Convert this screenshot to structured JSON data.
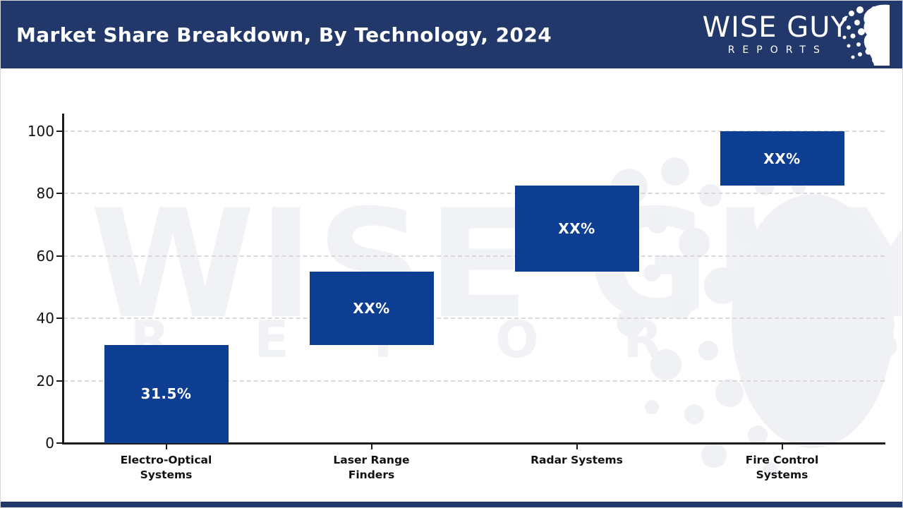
{
  "header": {
    "title": "Market Share Breakdown, By Technology, 2024",
    "brand": {
      "name": "WISE GUY",
      "tagline": "REPORTS"
    }
  },
  "watermark": {
    "line1": "WISE GUY",
    "line2": "REPORTS"
  },
  "chart_data": {
    "type": "bar",
    "subtype": "floating-waterfall",
    "title": "Market Share Breakdown, By Technology, 2024",
    "categories": [
      [
        "Electro-Optical",
        "Systems"
      ],
      [
        "Laser Range",
        "Finders"
      ],
      [
        "Radar Systems"
      ],
      [
        "Fire Control",
        "Systems"
      ]
    ],
    "bars": [
      {
        "category": "Electro-Optical Systems",
        "label": "31.5%",
        "start": 0,
        "end": 31.5,
        "value": 31.5
      },
      {
        "category": "Laser Range Finders",
        "label": "XX%",
        "start": 31.5,
        "end": 55,
        "value": 23.5
      },
      {
        "category": "Radar Systems",
        "label": "XX%",
        "start": 55,
        "end": 82.5,
        "value": 27.5
      },
      {
        "category": "Fire Control Systems",
        "label": "XX%",
        "start": 82.5,
        "end": 100,
        "value": 17.5
      }
    ],
    "xlabel": "",
    "ylabel": "",
    "ylim": [
      0,
      100
    ],
    "yticks": [
      0,
      20,
      40,
      60,
      80,
      100
    ],
    "grid": "horizontal-dashed",
    "legend": "none",
    "colors": {
      "bar": "#0d3e91",
      "bar_label": "#ffffff",
      "grid": "#d9d9d9",
      "axis": "#1c1c1c",
      "header_bg": "#22386a",
      "footer_bg": "#22386a",
      "tick_label": "#111111",
      "watermark": "#f0f2f5"
    }
  }
}
